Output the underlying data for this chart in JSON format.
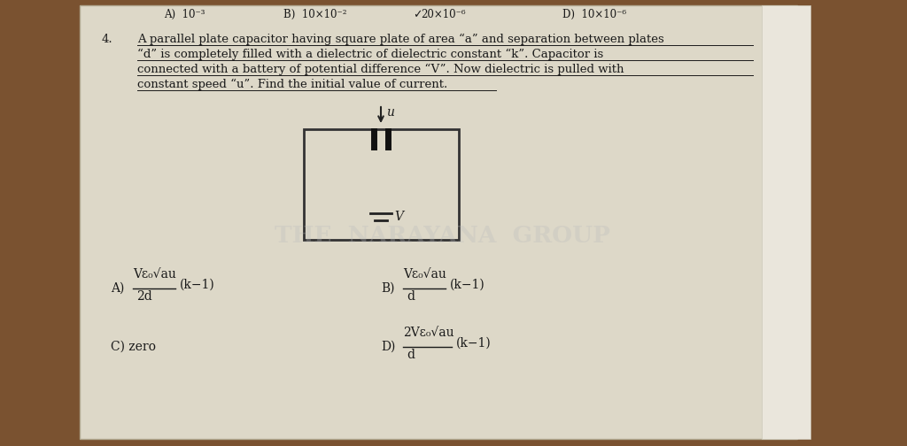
{
  "bg_color": "#7a5230",
  "paper_color": "#ddd8c8",
  "text_color": "#1a1a1a",
  "top_line": "A)  10⁻³          B)  10×10⁻²          C)  20×10⁻⁶          D)  10×10⁻⁶",
  "q_num": "4.",
  "q_lines": [
    "A parallel plate capacitor having square plate of area “a” and separation between plates",
    "“d” is completely filled with a dielectric of dielectric constant “k”. Capacitor is",
    "connected with a battery of potential difference “V”. Now dielectric is pulled with",
    "constant speed “u”. Find the initial value of current."
  ],
  "watermark": "THE  NARAYANA  GROUP",
  "arrow_label": "u",
  "battery_label": "V",
  "ans_A_num": "Vε₀√au",
  "ans_A_den": "2d",
  "ans_A_rest": "(k−1)",
  "ans_B_num": "Vε₀√au",
  "ans_B_den": "d",
  "ans_B_rest": "(k−1)",
  "ans_C": "zero",
  "ans_D_num": "2Vε₀√au",
  "ans_D_den": "d",
  "ans_D_rest": "(k−1)"
}
